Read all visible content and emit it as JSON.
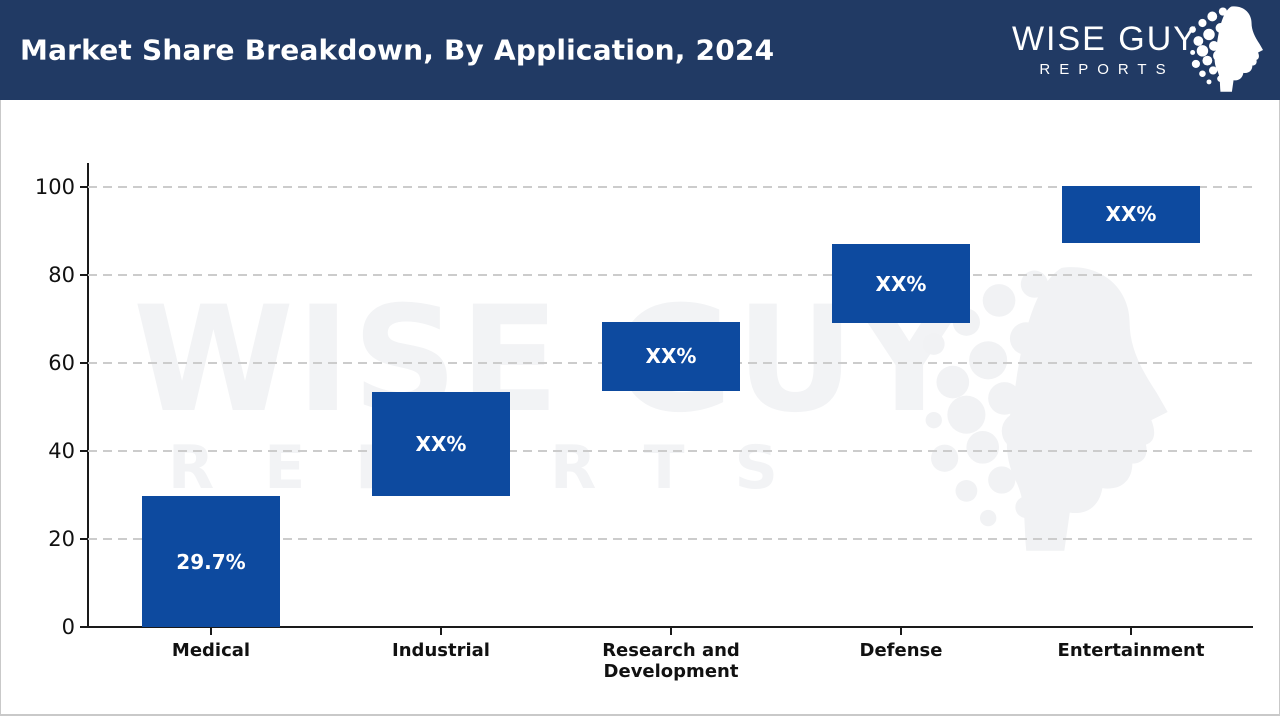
{
  "header": {
    "title": "Market Share Breakdown, By Application, 2024",
    "logo": {
      "line1": "WISE GUY",
      "line2": "REPORTS"
    },
    "background_color": "#213a64"
  },
  "watermark": {
    "line1": "WISE GUY",
    "line2": "REPORTS",
    "color": "#f2f3f5"
  },
  "theme": {
    "bar_color": "#0d4a9f",
    "bar_label_color": "#ffffff",
    "grid_color": "#cccccc",
    "axis_color": "#1a1a1a",
    "tick_label_color": "#111111"
  },
  "chart_data": {
    "type": "bar",
    "subtype": "waterfall",
    "title": "Market Share Breakdown, By Application, 2024",
    "xlabel": "",
    "ylabel": "",
    "ylim": [
      0,
      105
    ],
    "yticks": [
      0,
      20,
      40,
      60,
      80,
      100
    ],
    "grid": "horizontal-dashed",
    "legend": "none",
    "categories": [
      "Medical",
      "Industrial",
      "Research and Development",
      "Defense",
      "Entertainment"
    ],
    "segments": [
      {
        "category": "Medical",
        "start": 0,
        "end": 29.7,
        "label": "29.7%"
      },
      {
        "category": "Industrial",
        "start": 29.7,
        "end": 53.4,
        "label": "XX%"
      },
      {
        "category": "Research and Development",
        "start": 53.7,
        "end": 69.3,
        "label": "XX%"
      },
      {
        "category": "Defense",
        "start": 69.1,
        "end": 87.0,
        "label": "XX%"
      },
      {
        "category": "Entertainment",
        "start": 87.3,
        "end": 100.2,
        "label": "XX%"
      }
    ]
  }
}
